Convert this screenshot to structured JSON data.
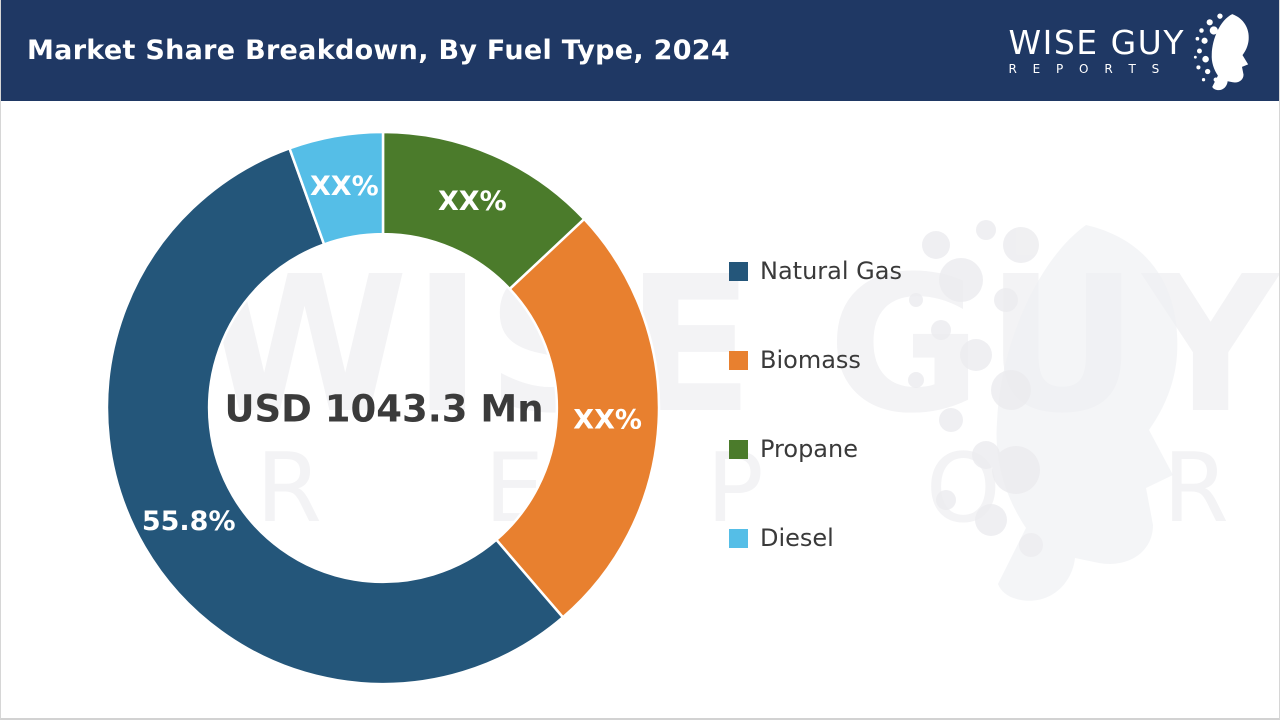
{
  "header": {
    "title": "Market Share Breakdown, By Fuel Type, 2024",
    "background": "#1F3864",
    "logo": {
      "name": "WISE GUY",
      "subtitle": "R E P O R T S"
    }
  },
  "watermark": {
    "line1": "WISE GUY",
    "line2": "R E P O R T S"
  },
  "chart_data": {
    "type": "donut",
    "title": "Market Share Breakdown, By Fuel Type, 2024",
    "center_label": "USD 1043.3 Mn",
    "start_angle_deg": 0,
    "direction": "clockwise",
    "inner_radius_ratio": 0.63,
    "label_color": "#FFFFFF",
    "segments": [
      {
        "name": "Propane",
        "value": 13.0,
        "label": "XX%",
        "color": "#4B7B2B"
      },
      {
        "name": "Biomass",
        "value": 25.7,
        "label": "XX%",
        "color": "#E8802F"
      },
      {
        "name": "Natural Gas",
        "value": 55.8,
        "label": "55.8%",
        "color": "#24567A"
      },
      {
        "name": "Diesel",
        "value": 5.5,
        "label": "XX%",
        "color": "#55BEE7"
      }
    ],
    "legend": [
      "Natural Gas",
      "Biomass",
      "Propane",
      "Diesel"
    ],
    "legend_position": "right"
  }
}
